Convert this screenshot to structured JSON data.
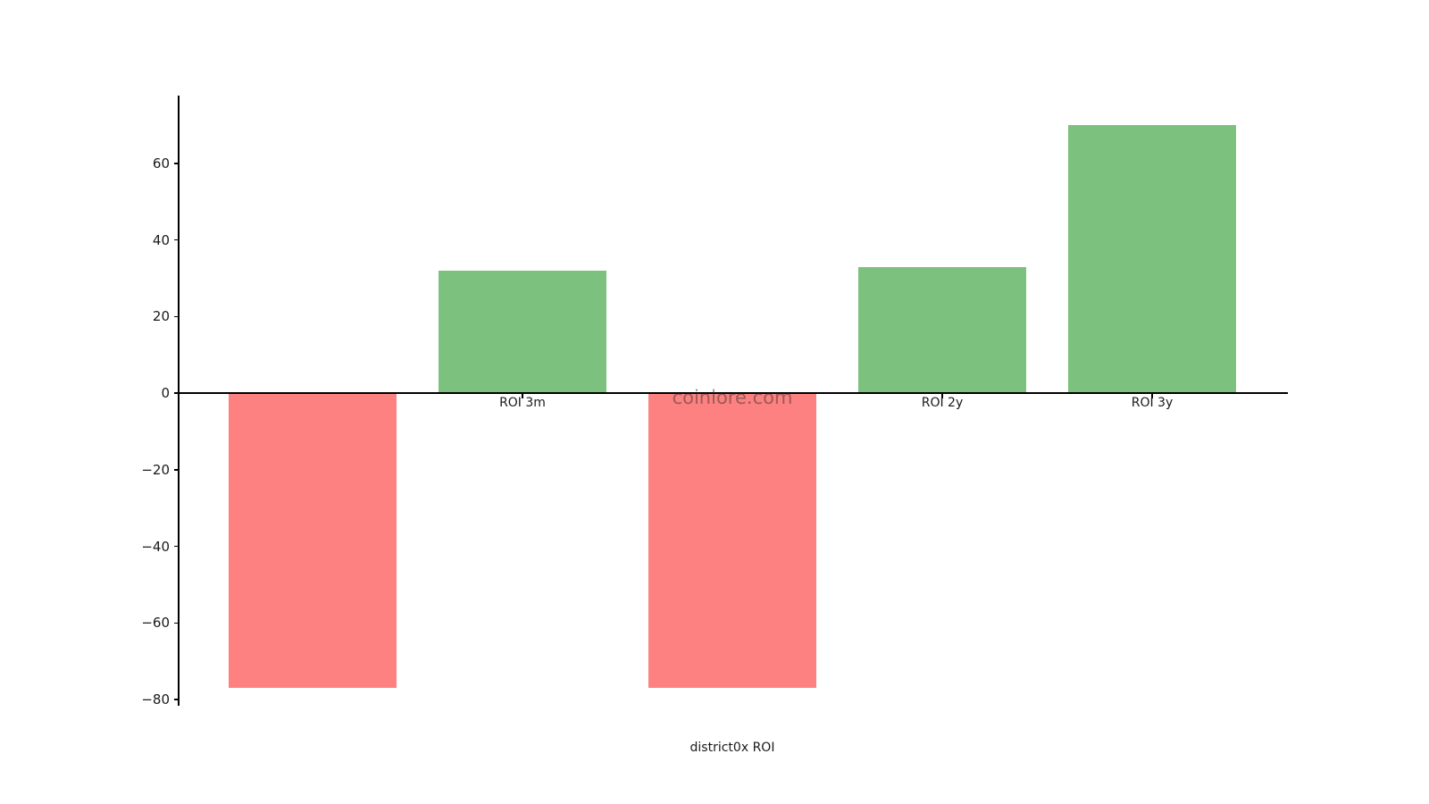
{
  "colors": {
    "positive": "#7cc17d",
    "negative": "#fd8181",
    "axis": "#000000",
    "tick_text": "#1a1a1a",
    "watermark_text": "rgba(40,40,40,0.45)"
  },
  "watermark": {
    "text": "coinlore.com"
  },
  "chart_data": {
    "type": "bar",
    "title": "",
    "xlabel": "district0x ROI",
    "ylabel": "",
    "categories": [
      "",
      "ROI 3m",
      "",
      "ROI 2y",
      "ROI 3y"
    ],
    "values": [
      -77,
      32,
      -77,
      33,
      70
    ],
    "bar_colors": [
      "negative",
      "positive",
      "negative",
      "positive",
      "positive"
    ],
    "yticks": [
      60,
      40,
      20,
      0,
      -20,
      -40,
      -60,
      -80
    ],
    "ytick_labels": [
      "60",
      "40",
      "20",
      "0",
      "−20",
      "−40",
      "−60",
      "−80"
    ],
    "ylim": [
      -81.5,
      77.5
    ],
    "grid": false,
    "legend": null
  }
}
